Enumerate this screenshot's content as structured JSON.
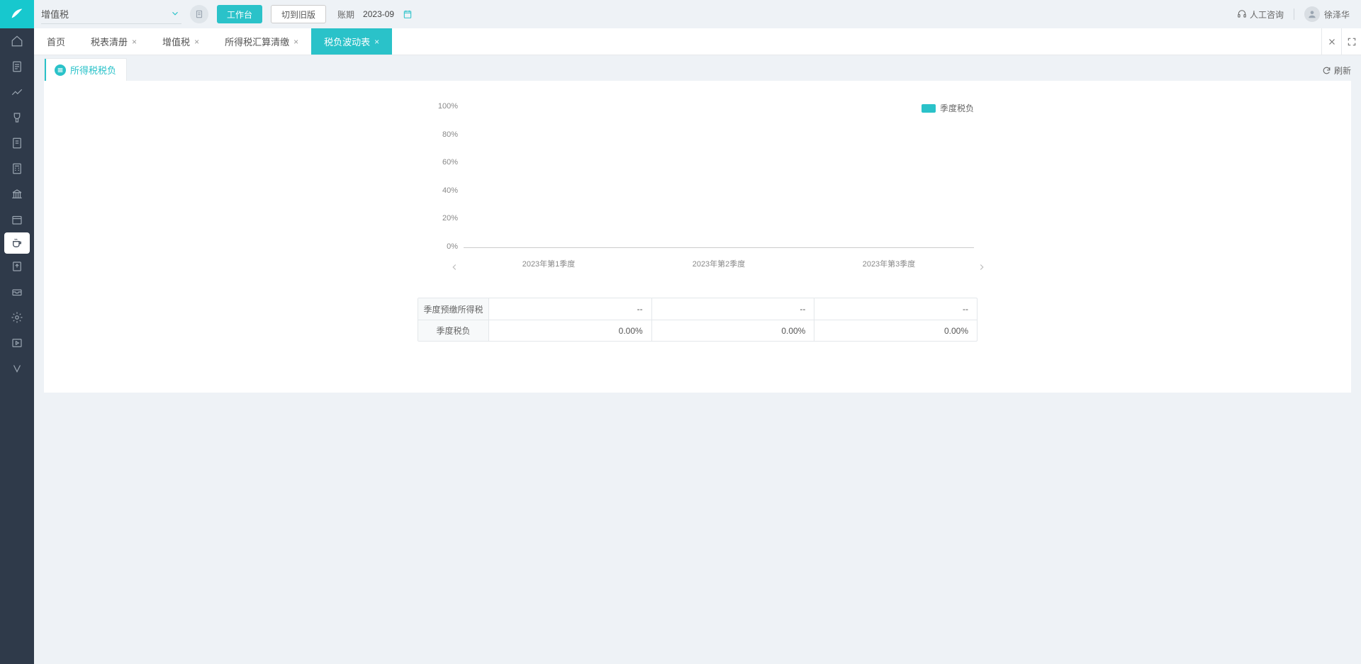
{
  "topbar": {
    "select_value": "增值税",
    "workspace_button": "工作台",
    "switch_old_button": "切到旧版",
    "period_label": "账期",
    "period_value": "2023-09",
    "consult_label": "人工咨询",
    "user_name": "徐泽华"
  },
  "sidebar": {
    "items": [
      {
        "name": "home",
        "active": false
      },
      {
        "name": "form",
        "active": false
      },
      {
        "name": "analytics",
        "active": false
      },
      {
        "name": "money",
        "active": false
      },
      {
        "name": "doc",
        "active": false
      },
      {
        "name": "calc",
        "active": false
      },
      {
        "name": "temple",
        "active": false
      },
      {
        "name": "box",
        "active": false
      },
      {
        "name": "cup",
        "active": true
      },
      {
        "name": "export",
        "active": false
      },
      {
        "name": "inbox",
        "active": false
      },
      {
        "name": "settings",
        "active": false
      },
      {
        "name": "play",
        "active": false
      },
      {
        "name": "v",
        "active": false
      }
    ]
  },
  "tabs": [
    {
      "label": "首页",
      "closable": false,
      "active": false
    },
    {
      "label": "税表清册",
      "closable": true,
      "active": false
    },
    {
      "label": "增值税",
      "closable": true,
      "active": false
    },
    {
      "label": "所得税汇算清缴",
      "closable": true,
      "active": false
    },
    {
      "label": "税负波动表",
      "closable": true,
      "active": true
    }
  ],
  "sub_tab": {
    "label": "所得税税负"
  },
  "refresh_label": "刷新",
  "chart": {
    "type": "bar",
    "legend_label": "季度税负",
    "legend_color": "#2ac2c9",
    "y_ticks": [
      "100%",
      "80%",
      "60%",
      "40%",
      "20%",
      "0%"
    ],
    "x_ticks": [
      "2023年第1季度",
      "2023年第2季度",
      "2023年第3季度"
    ],
    "ylim": [
      0,
      100
    ],
    "values": [
      0,
      0,
      0
    ],
    "background_color": "#ffffff",
    "axis_color": "#cccccc",
    "tick_font_color": "#888888",
    "tick_font_size": 11
  },
  "table": {
    "row_headers": [
      "季度预缴所得税",
      "季度税负"
    ],
    "rows": [
      [
        "--",
        "--",
        "--"
      ],
      [
        "0.00%",
        "0.00%",
        "0.00%"
      ]
    ]
  }
}
